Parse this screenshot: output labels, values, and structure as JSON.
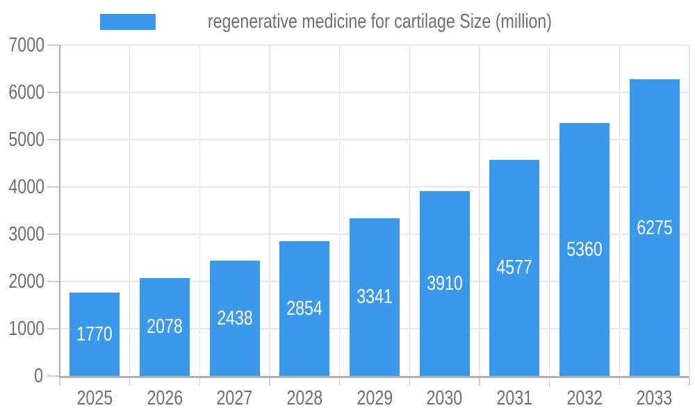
{
  "chart_data": {
    "type": "bar",
    "title": "regenerative medicine for cartilage Size (million)",
    "legend_position": "top",
    "categories": [
      "2025",
      "2026",
      "2027",
      "2028",
      "2029",
      "2030",
      "2031",
      "2032",
      "2033"
    ],
    "values": [
      1770,
      2078,
      2438,
      2854,
      3341,
      3910,
      4577,
      5360,
      6275
    ],
    "xlabel": "",
    "ylabel": "",
    "ylim": [
      0,
      7000
    ],
    "ytick_step": 1000,
    "yticks": [
      0,
      1000,
      2000,
      3000,
      4000,
      5000,
      6000,
      7000
    ],
    "grid": true,
    "bar_value_labels_visible": true,
    "colors": {
      "bar": "#3b99ec",
      "bar_label": "#ffffff",
      "grid": "#e6e6e6",
      "axis": "#b0b0b0",
      "tick": "#cccccc",
      "text": "#6e6e6e",
      "background": "#ffffff"
    }
  }
}
